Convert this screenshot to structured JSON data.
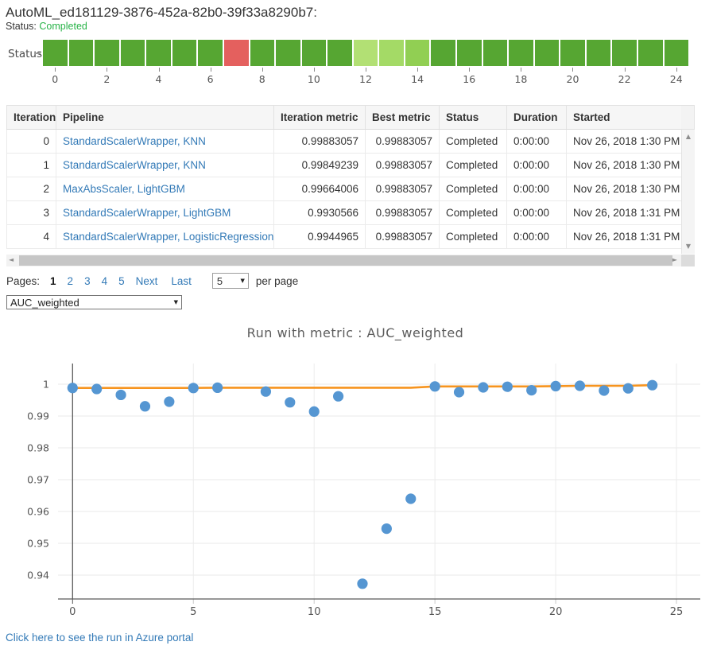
{
  "header": {
    "title": "AutoML_ed181129-3876-452a-82b0-39f33a8290b7:",
    "status_label": "Status:",
    "status_value": "Completed"
  },
  "colors": {
    "status_green_text": "#28b348",
    "link_blue": "#337ab7",
    "cell_green": "#56a632",
    "cell_red": "#e4605e",
    "marker_blue": "#5596d2",
    "line_orange": "#f7941e"
  },
  "icons": {
    "dropdown_arrow": "▼",
    "scroll_up": "▲",
    "scroll_down": "▼",
    "scroll_left": "◄",
    "scroll_right": "►"
  },
  "status_bar": {
    "axis_label": "Status",
    "cell_colors": [
      "#56a632",
      "#56a632",
      "#56a632",
      "#56a632",
      "#56a632",
      "#56a632",
      "#56a632",
      "#e4605e",
      "#56a632",
      "#56a632",
      "#56a632",
      "#56a632",
      "#b2e074",
      "#a4da66",
      "#91cf53",
      "#56a632",
      "#56a632",
      "#56a632",
      "#56a632",
      "#56a632",
      "#56a632",
      "#56a632",
      "#56a632",
      "#56a632",
      "#56a632"
    ],
    "tick_labels": [
      "0",
      "2",
      "4",
      "6",
      "8",
      "10",
      "12",
      "14",
      "16",
      "18",
      "20",
      "22",
      "24"
    ]
  },
  "table": {
    "columns": [
      "Iteration",
      "Pipeline",
      "Iteration metric",
      "Best metric",
      "Status",
      "Duration",
      "Started"
    ],
    "rows": [
      [
        "0",
        "StandardScalerWrapper, KNN",
        "0.99883057",
        "0.99883057",
        "Completed",
        "0:00:00",
        "Nov 26, 2018 1:30 PM"
      ],
      [
        "1",
        "StandardScalerWrapper, KNN",
        "0.99849239",
        "0.99883057",
        "Completed",
        "0:00:00",
        "Nov 26, 2018 1:30 PM"
      ],
      [
        "2",
        "MaxAbsScaler, LightGBM",
        "0.99664006",
        "0.99883057",
        "Completed",
        "0:00:00",
        "Nov 26, 2018 1:30 PM"
      ],
      [
        "3",
        "StandardScalerWrapper, LightGBM",
        "0.9930566",
        "0.99883057",
        "Completed",
        "0:00:00",
        "Nov 26, 2018 1:31 PM"
      ],
      [
        "4",
        "StandardScalerWrapper, LogisticRegression",
        "0.9944965",
        "0.99883057",
        "Completed",
        "0:00:00",
        "Nov 26, 2018 1:31 PM"
      ]
    ]
  },
  "pagination": {
    "label": "Pages:",
    "current": "1",
    "pages": [
      "2",
      "3",
      "4",
      "5"
    ],
    "next": "Next",
    "last": "Last",
    "page_size": "5",
    "per_page_label": "per page"
  },
  "metric_select": {
    "value": "AUC_weighted"
  },
  "chart_data": {
    "type": "scatter",
    "title": "Run with metric : AUC_weighted",
    "xlabel": "",
    "ylabel": "",
    "xlim": [
      -1.5,
      26
    ],
    "ylim": [
      0.9325,
      1.0065
    ],
    "xticks": [
      0,
      5,
      10,
      15,
      20,
      25
    ],
    "yticks": [
      1,
      0.99,
      0.98,
      0.97,
      0.96,
      0.95,
      0.94
    ],
    "grid": true,
    "legend": "none",
    "series": [
      {
        "name": "iteration_metric",
        "type": "scatter",
        "color": "#5596d2",
        "x": [
          0,
          1,
          2,
          3,
          4,
          5,
          6,
          8,
          9,
          10,
          11,
          12,
          13,
          14,
          15,
          16,
          17,
          18,
          19,
          20,
          21,
          22,
          23,
          24
        ],
        "y": [
          0.99883057,
          0.99849239,
          0.99664006,
          0.9930566,
          0.9944965,
          0.9988,
          0.9989,
          0.9977,
          0.9943,
          0.9914,
          0.9962,
          0.9373,
          0.9546,
          0.964,
          0.9993,
          0.9975,
          0.999,
          0.9992,
          0.9981,
          0.9994,
          0.9995,
          0.998,
          0.9987,
          0.9997
        ]
      },
      {
        "name": "best_metric",
        "type": "line",
        "color": "#f7941e",
        "x": [
          0,
          1,
          2,
          3,
          4,
          5,
          6,
          7,
          8,
          9,
          10,
          11,
          12,
          13,
          14,
          15,
          16,
          17,
          18,
          19,
          20,
          21,
          22,
          23,
          24
        ],
        "y": [
          0.99883057,
          0.99883057,
          0.99883057,
          0.99883057,
          0.99883057,
          0.99883057,
          0.9989,
          0.9989,
          0.9989,
          0.9989,
          0.9989,
          0.9989,
          0.9989,
          0.9989,
          0.9989,
          0.9993,
          0.9993,
          0.9993,
          0.9993,
          0.9993,
          0.9994,
          0.9995,
          0.9995,
          0.9995,
          0.9997
        ]
      }
    ]
  },
  "footer": {
    "link_text": "Click here to see the run in Azure portal"
  }
}
